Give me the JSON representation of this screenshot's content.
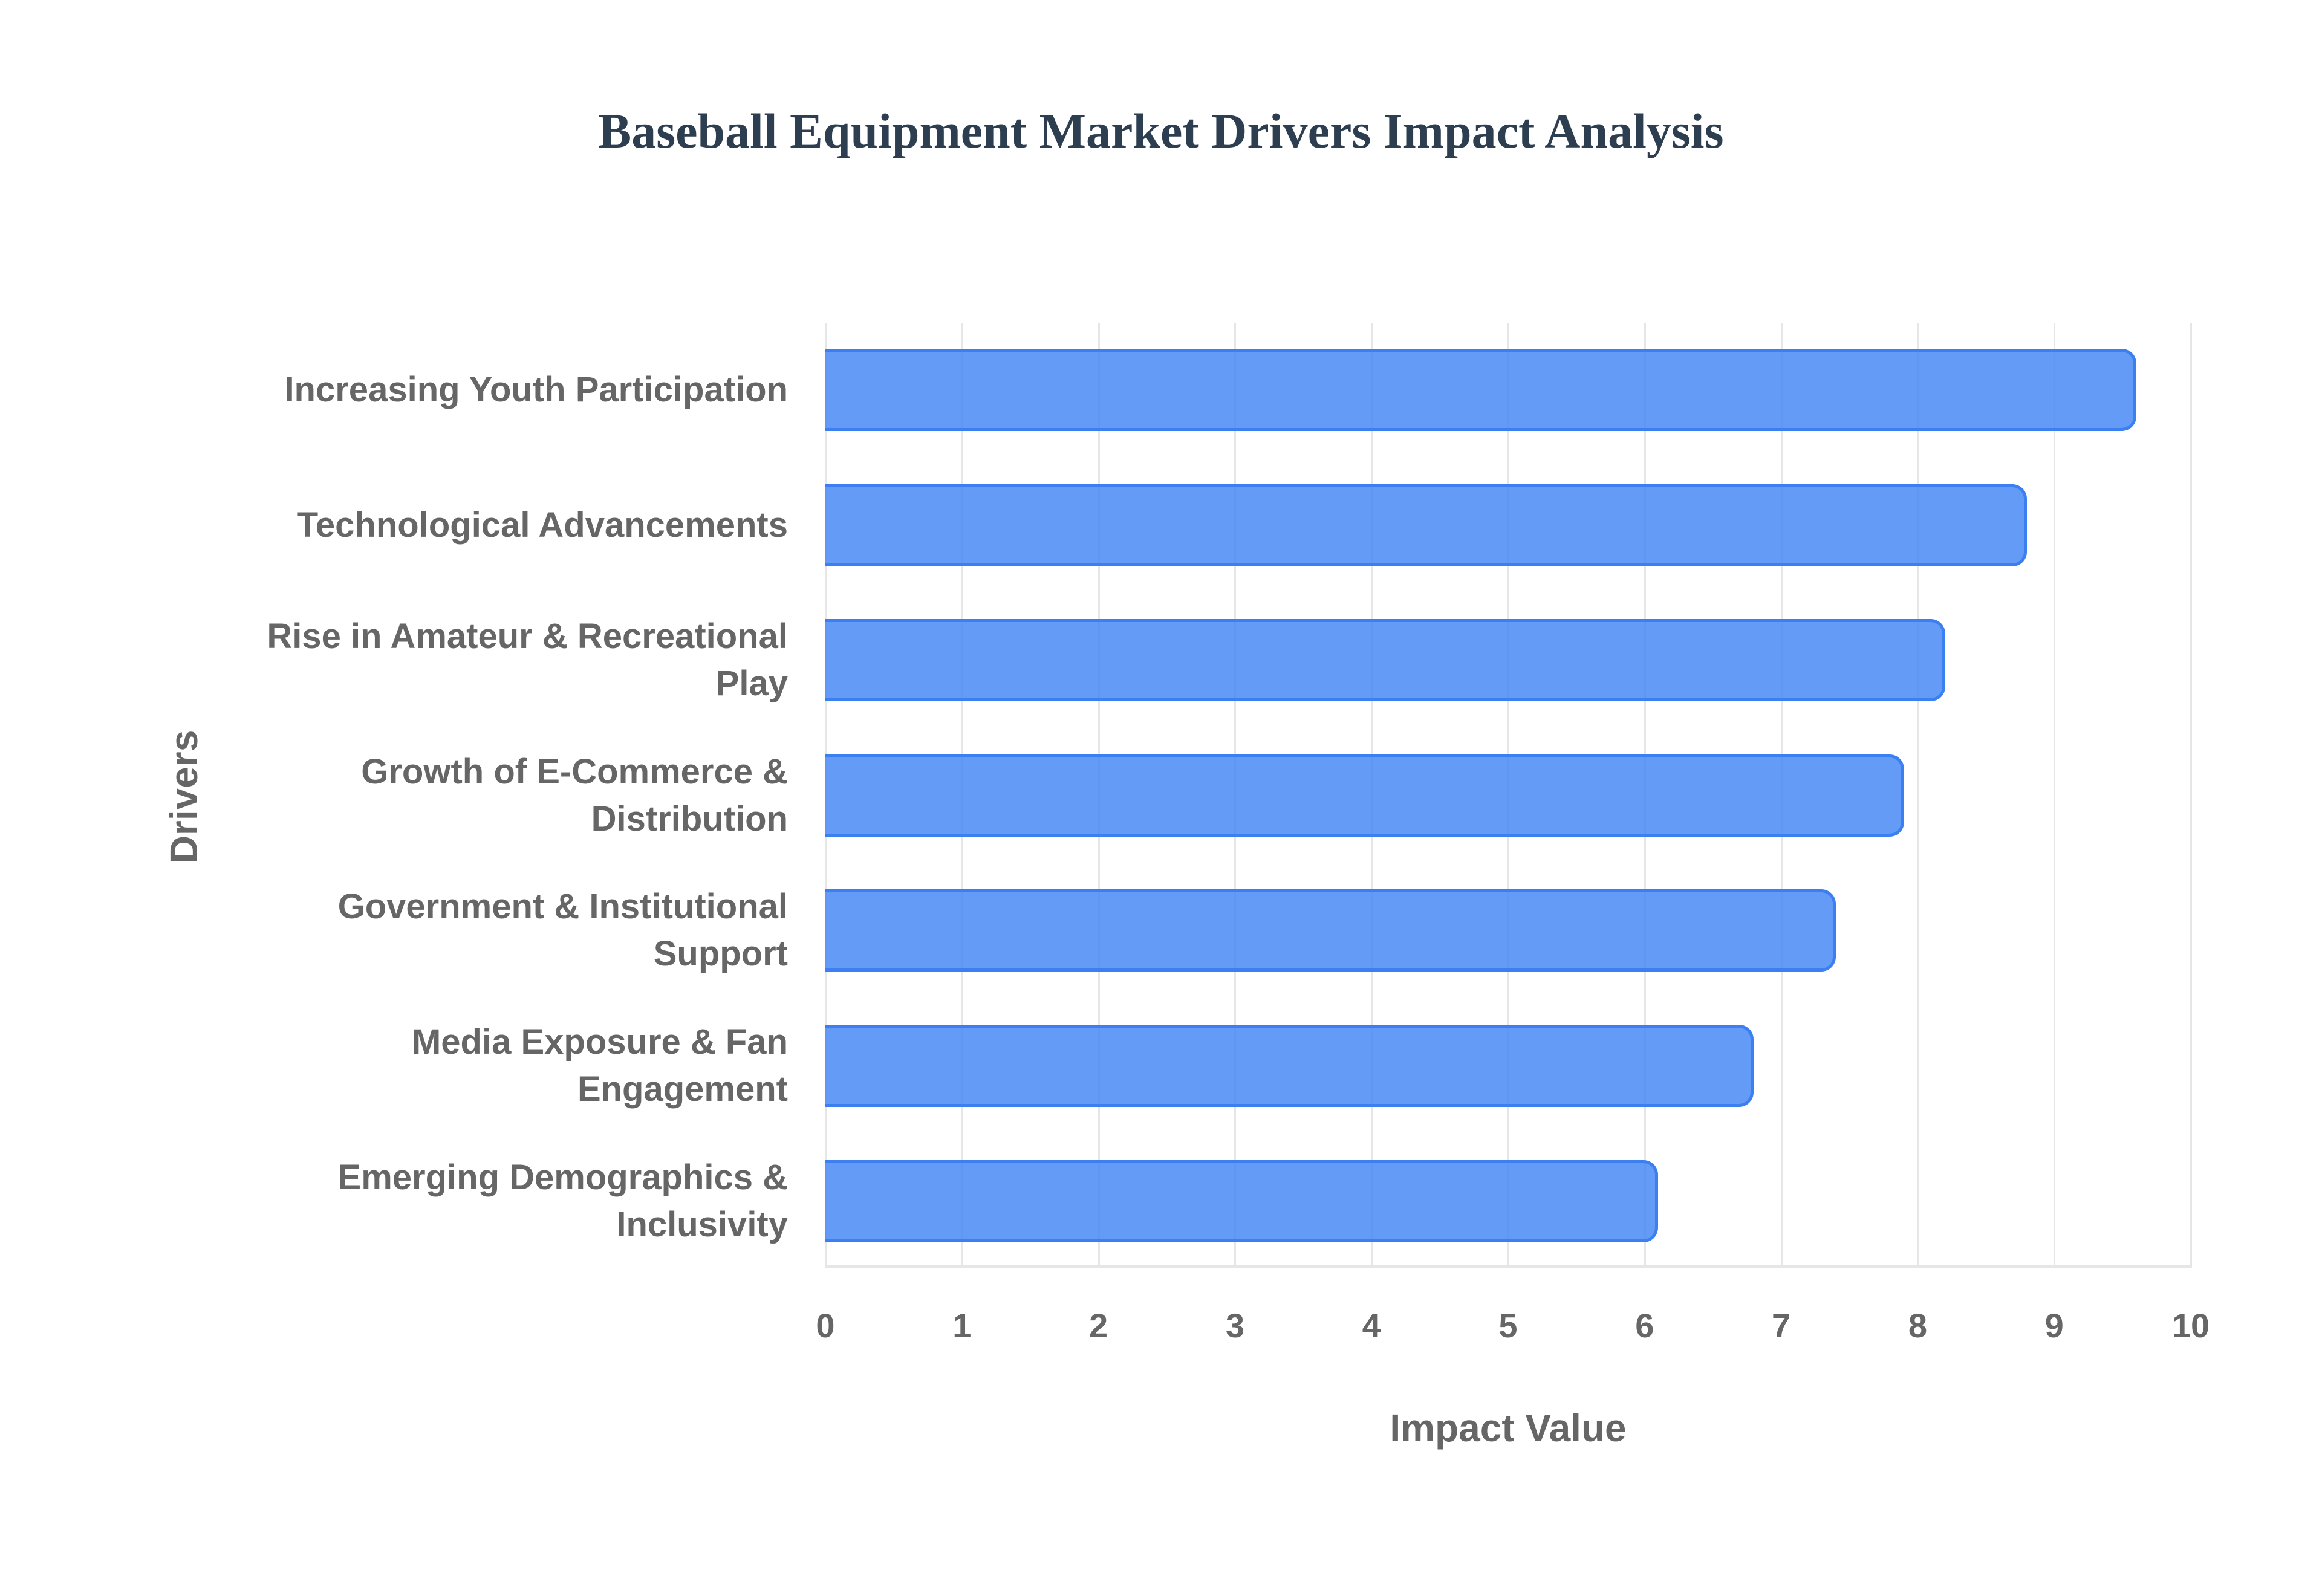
{
  "title": "Baseball Equipment Market Drivers Impact Analysis",
  "chart_data": {
    "type": "bar",
    "orientation": "horizontal",
    "title": "Baseball Equipment Market Drivers Impact Analysis",
    "xlabel": "Impact Value",
    "ylabel": "Drivers",
    "xlim": [
      0,
      10
    ],
    "xticks": [
      "0",
      "1",
      "2",
      "3",
      "4",
      "5",
      "6",
      "7",
      "8",
      "9",
      "10"
    ],
    "grid": true,
    "legend": null,
    "bar_color": "#4285f4",
    "categories": [
      "Increasing Youth Participation",
      "Technological Advancements",
      "Rise in Amateur & Recreational Play",
      "Growth of E-Commerce & Distribution",
      "Government & Institutional Support",
      "Media Exposure & Fan Engagement",
      "Emerging Demographics & Inclusivity"
    ],
    "values": [
      9.6,
      8.8,
      8.2,
      7.9,
      7.4,
      6.8,
      6.1
    ]
  },
  "labels": [
    [
      "Increasing Youth Participation"
    ],
    [
      "Technological Advancements"
    ],
    [
      "Rise in Amateur & Recreational",
      "Play"
    ],
    [
      "Growth of E-Commerce &",
      "Distribution"
    ],
    [
      "Government & Institutional",
      "Support"
    ],
    [
      "Media Exposure & Fan",
      "Engagement"
    ],
    [
      "Emerging Demographics &",
      "Inclusivity"
    ]
  ]
}
